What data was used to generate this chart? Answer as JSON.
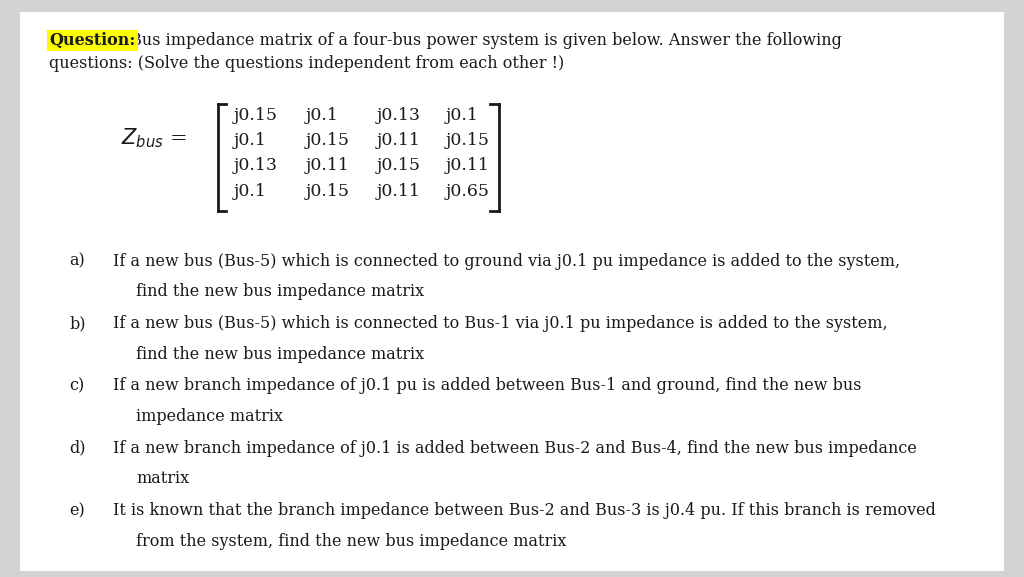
{
  "background_color": "#d3d3d3",
  "content_bg": "#ffffff",
  "question_label": "Question:",
  "question_label_highlight": "#ffff00",
  "question_text_line1": " Bus impedance matrix of a four-bus power system is given below. Answer the following",
  "question_text_line2": "questions: (Solve the questions independent from each other !)",
  "matrix": [
    [
      "j0.15",
      "j0.1",
      "j0.13",
      "j0.1"
    ],
    [
      "j0.1",
      "j0.15",
      "j0.11",
      "j0.15"
    ],
    [
      "j0.13",
      "j0.11",
      "j0.15",
      "j0.11"
    ],
    [
      "j0.1",
      "j0.15",
      "j0.11",
      "j0.65"
    ]
  ],
  "items": [
    {
      "label": "a)",
      "line1": "If a new bus (Bus-5) which is connected to ground via j0.1 pu impedance is added to the system,",
      "line2": "find the new bus impedance matrix"
    },
    {
      "label": "b)",
      "line1": "If a new bus (Bus-5) which is connected to Bus-1 via j0.1 pu impedance is added to the system,",
      "line2": "find the new bus impedance matrix"
    },
    {
      "label": "c)",
      "line1": "If a new branch impedance of j0.1 pu is added between Bus-1 and ground, find the new bus",
      "line2": "impedance matrix"
    },
    {
      "label": "d)",
      "line1": "If a new branch impedance of j0.1 is added between Bus-2 and Bus-4, find the new bus impedance",
      "line2": "matrix"
    },
    {
      "label": "e)",
      "line1": "It is known that the branch impedance between Bus-2 and Bus-3 is j0.4 pu. If this branch is removed",
      "line2": "from the system, find the new bus impedance matrix"
    }
  ],
  "text_color": "#1a1a1a",
  "font_size_main": 11.5,
  "font_size_matrix": 12.5
}
